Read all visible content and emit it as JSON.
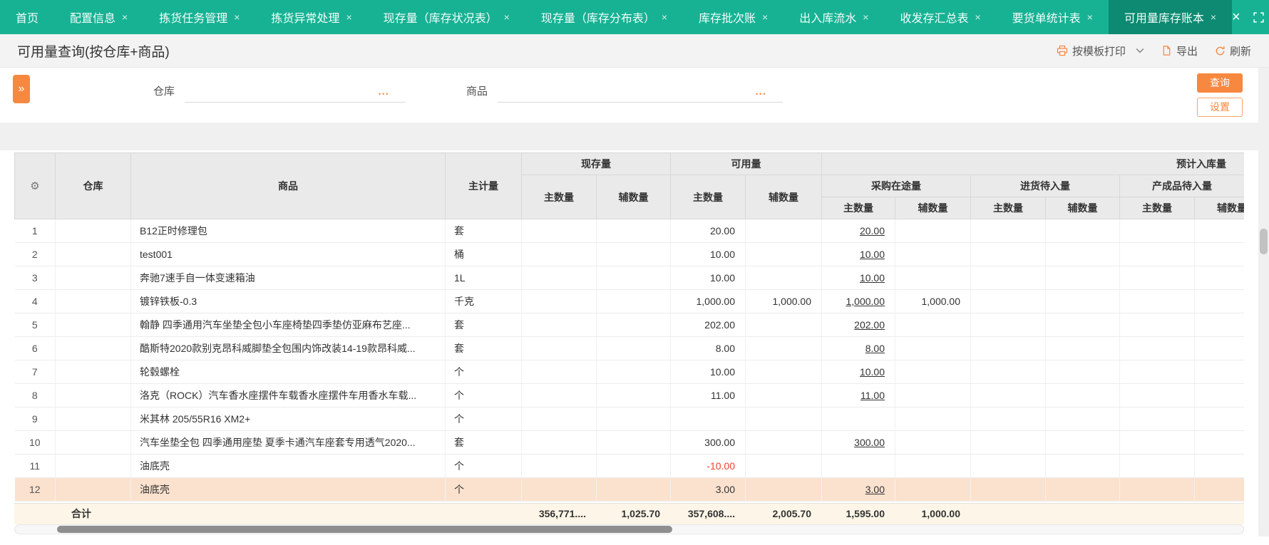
{
  "tabbar": {
    "tabs": [
      {
        "label": "首页",
        "closable": false,
        "active": false
      },
      {
        "label": "配置信息",
        "closable": true,
        "active": false
      },
      {
        "label": "拣货任务管理",
        "closable": true,
        "active": false
      },
      {
        "label": "拣货异常处理",
        "closable": true,
        "active": false
      },
      {
        "label": "现存量（库存状况表）",
        "closable": true,
        "active": false
      },
      {
        "label": "现存量（库存分布表）",
        "closable": true,
        "active": false
      },
      {
        "label": "库存批次账",
        "closable": true,
        "active": false
      },
      {
        "label": "出入库流水",
        "closable": true,
        "active": false
      },
      {
        "label": "收发存汇总表",
        "closable": true,
        "active": false
      },
      {
        "label": "要货单统计表",
        "closable": true,
        "active": false
      },
      {
        "label": "可用量库存账本",
        "closable": true,
        "active": true
      }
    ],
    "close_icon": "×",
    "window_close_icon": "×"
  },
  "titlebar": {
    "title": "可用量查询(按仓库+商品)",
    "print_label": "按模板打印",
    "export_label": "导出",
    "refresh_label": "刷新"
  },
  "filters": {
    "collapse_icon": "»",
    "warehouse_label": "仓库",
    "product_label": "商品",
    "more_icon": "•••",
    "search_button": "查询",
    "settings_button": "设置"
  },
  "table": {
    "gear_icon": "⚙",
    "header": {
      "warehouse": "仓库",
      "product": "商品",
      "unit": "主计量",
      "onhand_group": "现存量",
      "available_group": "可用量",
      "expected_in_group": "预计入库量",
      "po_transit_group": "采购在途量",
      "inbound_pending_group": "进货待入量",
      "finished_pending_group": "产成品待入量",
      "main_qty": "主数量",
      "aux_qty": "辅数量"
    },
    "rows": [
      {
        "num": "1",
        "warehouse": "",
        "product": "B12正时修理包",
        "unit": "套",
        "onhand_main": "",
        "onhand_aux": "",
        "avail_main": "20.00",
        "avail_aux": "",
        "po_main": "20.00",
        "po_link": true,
        "po_aux": "",
        "in_main": "",
        "in_aux": "",
        "prod_main": "",
        "prod_aux": "",
        "highlight": false
      },
      {
        "num": "2",
        "warehouse": "",
        "product": "test001",
        "unit": "桶",
        "onhand_main": "",
        "onhand_aux": "",
        "avail_main": "10.00",
        "avail_aux": "",
        "po_main": "10.00",
        "po_link": true,
        "po_aux": "",
        "in_main": "",
        "in_aux": "",
        "prod_main": "",
        "prod_aux": "",
        "highlight": false
      },
      {
        "num": "3",
        "warehouse": "",
        "product": "奔驰7速手自一体变速箱油",
        "unit": "1L",
        "onhand_main": "",
        "onhand_aux": "",
        "avail_main": "10.00",
        "avail_aux": "",
        "po_main": "10.00",
        "po_link": true,
        "po_aux": "",
        "in_main": "",
        "in_aux": "",
        "prod_main": "",
        "prod_aux": "",
        "highlight": false
      },
      {
        "num": "4",
        "warehouse": "",
        "product": "镀锌铁板-0.3",
        "unit": "千克",
        "onhand_main": "",
        "onhand_aux": "",
        "avail_main": "1,000.00",
        "avail_aux": "1,000.00",
        "po_main": "1,000.00",
        "po_link": true,
        "po_aux": "1,000.00",
        "in_main": "",
        "in_aux": "",
        "prod_main": "",
        "prod_aux": "",
        "highlight": false
      },
      {
        "num": "5",
        "warehouse": "",
        "product": "翰静 四季通用汽车坐垫全包小车座椅垫四季垫仿亚麻布艺座...",
        "unit": "套",
        "onhand_main": "",
        "onhand_aux": "",
        "avail_main": "202.00",
        "avail_aux": "",
        "po_main": "202.00",
        "po_link": true,
        "po_aux": "",
        "in_main": "",
        "in_aux": "",
        "prod_main": "",
        "prod_aux": "",
        "highlight": false
      },
      {
        "num": "6",
        "warehouse": "",
        "product": "酷斯特2020款别克昂科威脚垫全包围内饰改装14-19款昂科威...",
        "unit": "套",
        "onhand_main": "",
        "onhand_aux": "",
        "avail_main": "8.00",
        "avail_aux": "",
        "po_main": "8.00",
        "po_link": true,
        "po_aux": "",
        "in_main": "",
        "in_aux": "",
        "prod_main": "",
        "prod_aux": "",
        "highlight": false
      },
      {
        "num": "7",
        "warehouse": "",
        "product": "轮毂螺栓",
        "unit": "个",
        "onhand_main": "",
        "onhand_aux": "",
        "avail_main": "10.00",
        "avail_aux": "",
        "po_main": "10.00",
        "po_link": true,
        "po_aux": "",
        "in_main": "",
        "in_aux": "",
        "prod_main": "",
        "prod_aux": "",
        "highlight": false
      },
      {
        "num": "8",
        "warehouse": "",
        "product": "洛克（ROCK）汽车香水座摆件车载香水座摆件车用香水车载...",
        "unit": "个",
        "onhand_main": "",
        "onhand_aux": "",
        "avail_main": "11.00",
        "avail_aux": "",
        "po_main": "11.00",
        "po_link": true,
        "po_aux": "",
        "in_main": "",
        "in_aux": "",
        "prod_main": "",
        "prod_aux": "",
        "highlight": false
      },
      {
        "num": "9",
        "warehouse": "",
        "product": "米其林 205/55R16 XM2+",
        "unit": "个",
        "onhand_main": "",
        "onhand_aux": "",
        "avail_main": "",
        "avail_aux": "",
        "po_main": "",
        "po_link": false,
        "po_aux": "",
        "in_main": "",
        "in_aux": "",
        "prod_main": "",
        "prod_aux": "",
        "highlight": false
      },
      {
        "num": "10",
        "warehouse": "",
        "product": "汽车坐垫全包 四季通用座垫 夏季卡通汽车座套专用透气2020...",
        "unit": "套",
        "onhand_main": "",
        "onhand_aux": "",
        "avail_main": "300.00",
        "avail_aux": "",
        "po_main": "300.00",
        "po_link": true,
        "po_aux": "",
        "in_main": "",
        "in_aux": "",
        "prod_main": "",
        "prod_aux": "",
        "highlight": false
      },
      {
        "num": "11",
        "warehouse": "",
        "product": "油底壳",
        "unit": "个",
        "onhand_main": "",
        "onhand_aux": "",
        "avail_main": "-10.00",
        "avail_aux": "",
        "po_main": "",
        "po_link": false,
        "po_aux": "",
        "in_main": "",
        "in_aux": "",
        "prod_main": "",
        "prod_aux": "",
        "highlight": false
      },
      {
        "num": "12",
        "warehouse": "",
        "product": "油底壳",
        "unit": "个",
        "onhand_main": "",
        "onhand_aux": "",
        "avail_main": "3.00",
        "avail_aux": "",
        "po_main": "3.00",
        "po_link": true,
        "po_aux": "",
        "in_main": "",
        "in_aux": "",
        "prod_main": "",
        "prod_aux": "",
        "highlight": true
      }
    ],
    "totals": {
      "label": "合计",
      "onhand_main": "356,771....",
      "onhand_aux": "1,025.70",
      "avail_main": "357,608....",
      "avail_aux": "2,005.70",
      "po_main": "1,595.00",
      "po_aux": "1,000.00"
    }
  },
  "colors": {
    "accent_teal": "#17b294",
    "active_tab_teal": "#0d8a71",
    "accent_orange": "#f7883f",
    "negative_red": "#f04134",
    "highlight_row": "#fbe2cf",
    "totals_bg": "#fdf6e8"
  }
}
